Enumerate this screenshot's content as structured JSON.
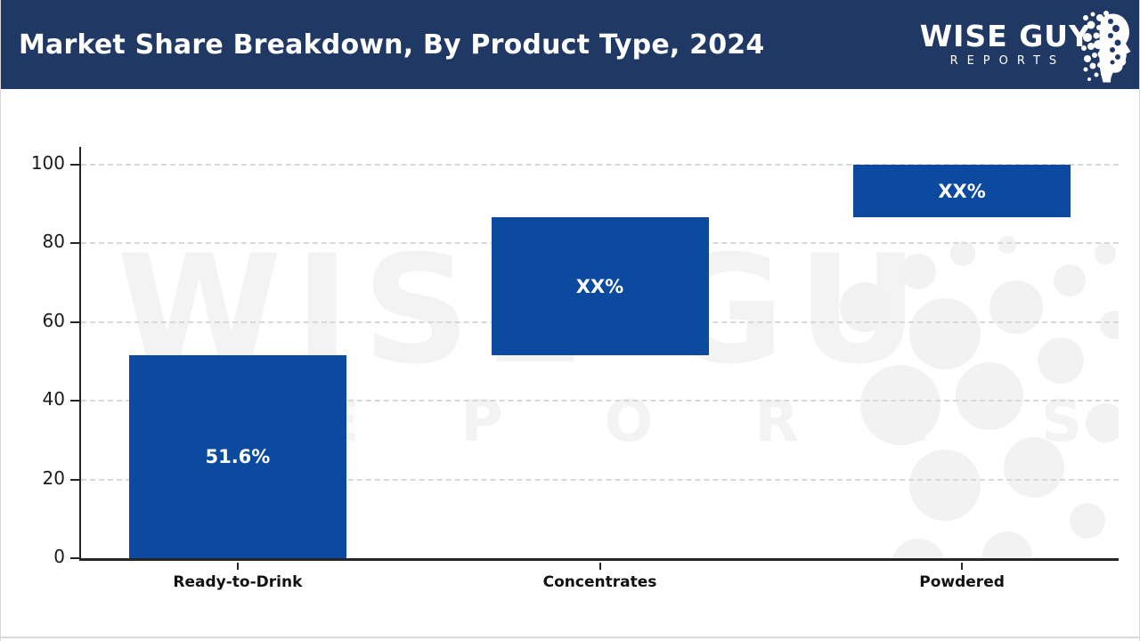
{
  "header": {
    "title": "Market Share Breakdown, By Product Type, 2024",
    "bg_color": "#203864",
    "logo": {
      "line1": "WISE GUY",
      "line2": "REPORTS"
    }
  },
  "watermark": {
    "line1": "WISE GU",
    "line2": "R E P O R T S"
  },
  "chart_data": {
    "type": "bar",
    "subtype": "floating-segment-bar",
    "title": "Market Share Breakdown, By Product Type, 2024",
    "categories": [
      "Ready-to-Drink",
      "Concentrates",
      "Powdered"
    ],
    "series": [
      {
        "name": "Market share (%)",
        "segments": [
          {
            "from": 0,
            "to": 51.6
          },
          {
            "from": 51.6,
            "to": 86.6
          },
          {
            "from": 86.6,
            "to": 100
          }
        ]
      }
    ],
    "bar_labels": [
      "51.6%",
      "XX%",
      "XX%"
    ],
    "xlabel": "",
    "ylabel": "",
    "ylim": [
      0,
      100
    ],
    "yticks": [
      0,
      20,
      40,
      60,
      80,
      100
    ],
    "grid": "horizontal-dashed",
    "legend": "none",
    "bar_color": "#0b4a9e",
    "bar_label_color": "#ffffff",
    "axis_color": "#262626",
    "gridline_color": "#d8d8d8"
  }
}
